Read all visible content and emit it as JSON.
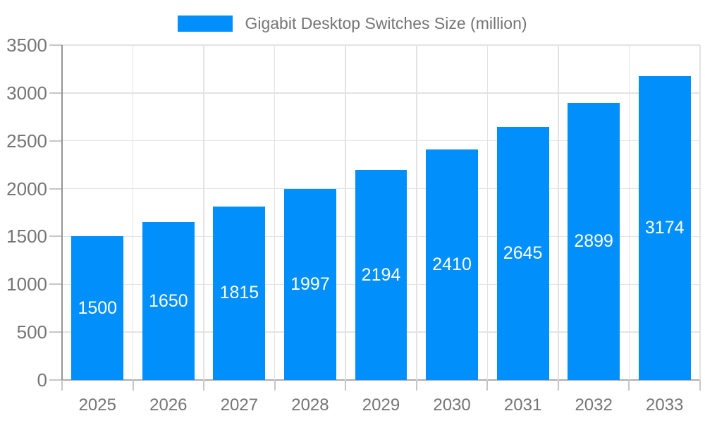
{
  "chart_data": {
    "type": "bar",
    "title": "Gigabit Desktop Switches Size (million)",
    "legend": {
      "label": "Gigabit Desktop Switches Size (million)",
      "position": "top"
    },
    "categories": [
      "2025",
      "2026",
      "2027",
      "2028",
      "2029",
      "2030",
      "2031",
      "2032",
      "2033"
    ],
    "series": [
      {
        "name": "Gigabit Desktop Switches Size (million)",
        "values": [
          1500,
          1650,
          1815,
          1997,
          2194,
          2410,
          2645,
          2899,
          3174
        ]
      }
    ],
    "value_labels": [
      1500,
      1650,
      1815,
      1997,
      2194,
      2410,
      2645,
      2899,
      3174
    ],
    "xlabel": "",
    "ylabel": "",
    "ylim": [
      0,
      3500
    ],
    "yticks": [
      0,
      500,
      1000,
      1500,
      2000,
      2500,
      3000,
      3500
    ],
    "grid": true,
    "value_label_position": "inside-center"
  },
  "colors": {
    "bar": "#008FFB",
    "text": "#757575",
    "value_label": "#FFFFFF",
    "grid": "#E3E3E3",
    "axis": "#949494",
    "baseline": "#ADADAD",
    "tick": "#C6C6C6",
    "background": "#FFFFFF"
  }
}
